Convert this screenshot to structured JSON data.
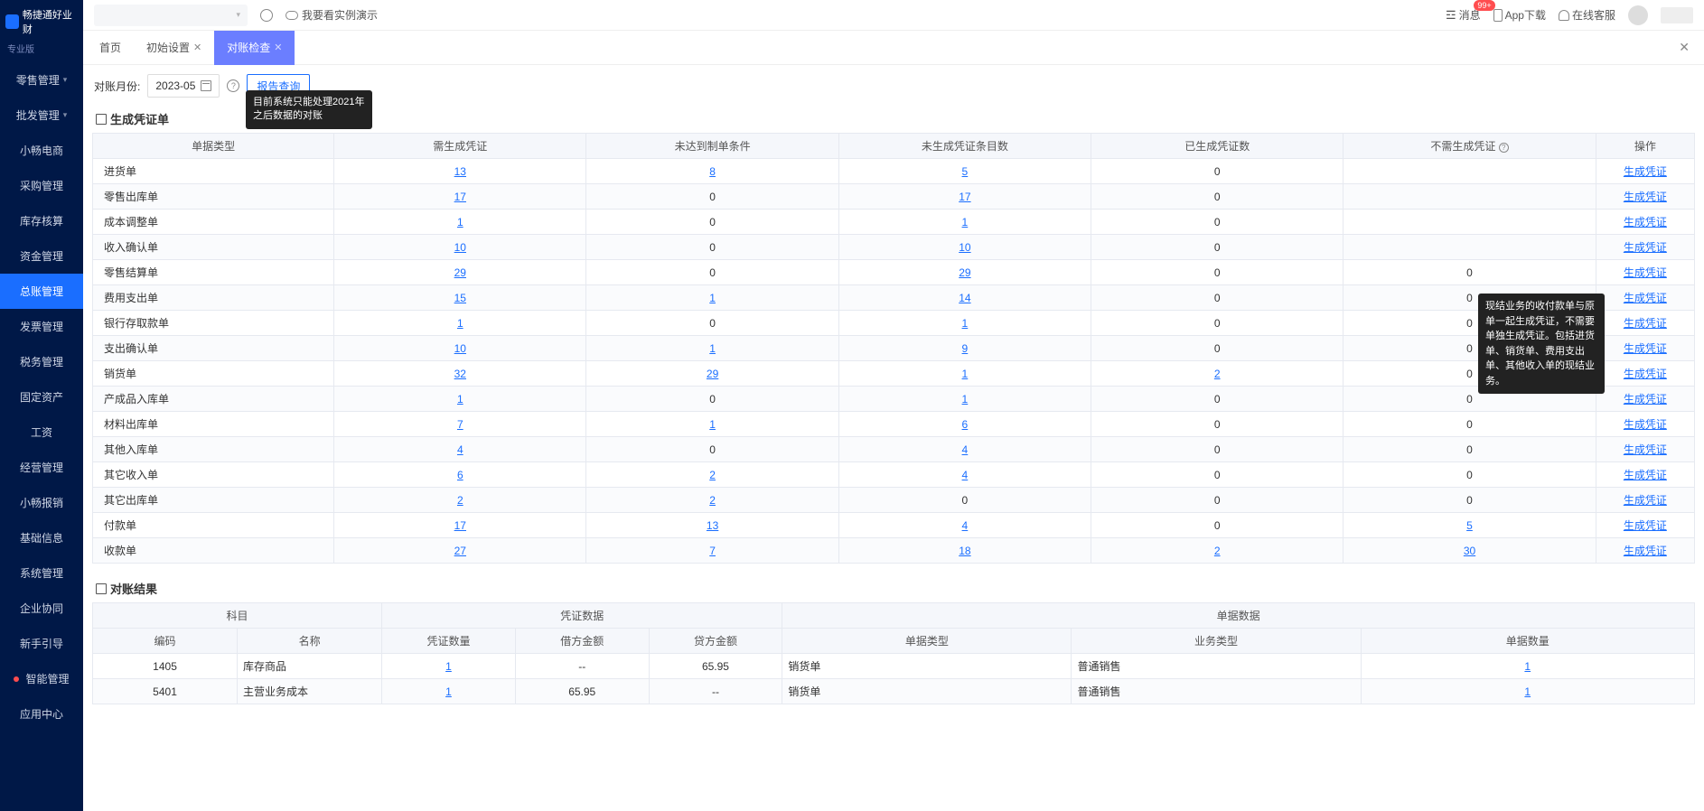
{
  "brand": {
    "name": "畅捷通好业财",
    "sub": "专业版"
  },
  "sidebar": [
    {
      "label": "零售管理",
      "chev": true
    },
    {
      "label": "批发管理",
      "chev": true
    },
    {
      "label": "小畅电商"
    },
    {
      "label": "采购管理"
    },
    {
      "label": "库存核算"
    },
    {
      "label": "资金管理"
    },
    {
      "label": "总账管理",
      "active": true
    },
    {
      "label": "发票管理"
    },
    {
      "label": "税务管理"
    },
    {
      "label": "固定资产"
    },
    {
      "label": "工资"
    },
    {
      "label": "经营管理"
    },
    {
      "label": "小畅报销"
    },
    {
      "label": "基础信息"
    },
    {
      "label": "系统管理"
    },
    {
      "label": "企业协同"
    },
    {
      "label": "新手引导"
    },
    {
      "label": "智能管理",
      "dot": true
    },
    {
      "label": "应用中心"
    }
  ],
  "topbar": {
    "demo_note": "我要看实例演示",
    "msg": "消息",
    "msg_badge": "99+",
    "app": "App下载",
    "cs": "在线客服"
  },
  "tabs": [
    {
      "label": "首页"
    },
    {
      "label": "初始设置",
      "close": true
    },
    {
      "label": "对账检查",
      "close": true,
      "active": true
    }
  ],
  "filter": {
    "label": "对账月份:",
    "date": "2023-05",
    "report_btn": "报告查询",
    "tooltip1": "目前系统只能处理2021年之后数据的对账"
  },
  "tooltip2": "现结业务的收付款单与原单一起生成凭证，不需要单独生成凭证。包括进货单、销货单、费用支出单、其他收入单的现结业务。",
  "section1": {
    "title": "生成凭证单"
  },
  "table1": {
    "cols": [
      "单据类型",
      "需生成凭证",
      "未达到制单条件",
      "未生成凭证条目数",
      "已生成凭证数",
      "不需生成凭证",
      "操作"
    ],
    "action": "生成凭证",
    "rows": [
      {
        "c0": "进货单",
        "c1": "13",
        "c2": "8",
        "c3": "5",
        "c4": "0",
        "c5": ""
      },
      {
        "c0": "零售出库单",
        "c1": "17",
        "c2": "0",
        "c3": "17",
        "c4": "0",
        "c5": ""
      },
      {
        "c0": "成本调整单",
        "c1": "1",
        "c2": "0",
        "c3": "1",
        "c4": "0",
        "c5": ""
      },
      {
        "c0": "收入确认单",
        "c1": "10",
        "c2": "0",
        "c3": "10",
        "c4": "0",
        "c5": ""
      },
      {
        "c0": "零售结算单",
        "c1": "29",
        "c2": "0",
        "c3": "29",
        "c4": "0",
        "c5": "0"
      },
      {
        "c0": "费用支出单",
        "c1": "15",
        "c2": "1",
        "c3": "14",
        "c4": "0",
        "c5": "0"
      },
      {
        "c0": "银行存取款单",
        "c1": "1",
        "c2": "0",
        "c3": "1",
        "c4": "0",
        "c5": "0"
      },
      {
        "c0": "支出确认单",
        "c1": "10",
        "c2": "1",
        "c3": "9",
        "c4": "0",
        "c5": "0"
      },
      {
        "c0": "销货单",
        "c1": "32",
        "c2": "29",
        "c3": "1",
        "c4": "2",
        "c5": "0"
      },
      {
        "c0": "产成品入库单",
        "c1": "1",
        "c2": "0",
        "c3": "1",
        "c4": "0",
        "c5": "0"
      },
      {
        "c0": "材料出库单",
        "c1": "7",
        "c2": "1",
        "c3": "6",
        "c4": "0",
        "c5": "0"
      },
      {
        "c0": "其他入库单",
        "c1": "4",
        "c2": "0",
        "c3": "4",
        "c4": "0",
        "c5": "0"
      },
      {
        "c0": "其它收入单",
        "c1": "6",
        "c2": "2",
        "c3": "4",
        "c4": "0",
        "c5": "0"
      },
      {
        "c0": "其它出库单",
        "c1": "2",
        "c2": "2",
        "c3": "0",
        "c4": "0",
        "c5": "0"
      },
      {
        "c0": "付款单",
        "c1": "17",
        "c2": "13",
        "c3": "4",
        "c4": "0",
        "c5": "5"
      },
      {
        "c0": "收款单",
        "c1": "27",
        "c2": "7",
        "c3": "18",
        "c4": "2",
        "c5": "30"
      }
    ]
  },
  "section2": {
    "title": "对账结果"
  },
  "table2": {
    "group_cols": [
      "科目",
      "凭证数据",
      "单据数据"
    ],
    "cols": [
      "编码",
      "名称",
      "凭证数量",
      "借方金额",
      "贷方金额",
      "单据类型",
      "业务类型",
      "单据数量"
    ],
    "rows": [
      {
        "c0": "1405",
        "c1": "库存商品",
        "c2": "1",
        "c3": "--",
        "c4": "65.95",
        "c5": "销货单",
        "c6": "普通销售",
        "c7": "1"
      },
      {
        "c0": "5401",
        "c1": "主营业务成本",
        "c2": "1",
        "c3": "65.95",
        "c4": "--",
        "c5": "销货单",
        "c6": "普通销售",
        "c7": "1"
      }
    ]
  },
  "colors": {
    "primary": "#1a6eff",
    "sidebar": "#001847",
    "tab_active": "#6b7eff"
  }
}
